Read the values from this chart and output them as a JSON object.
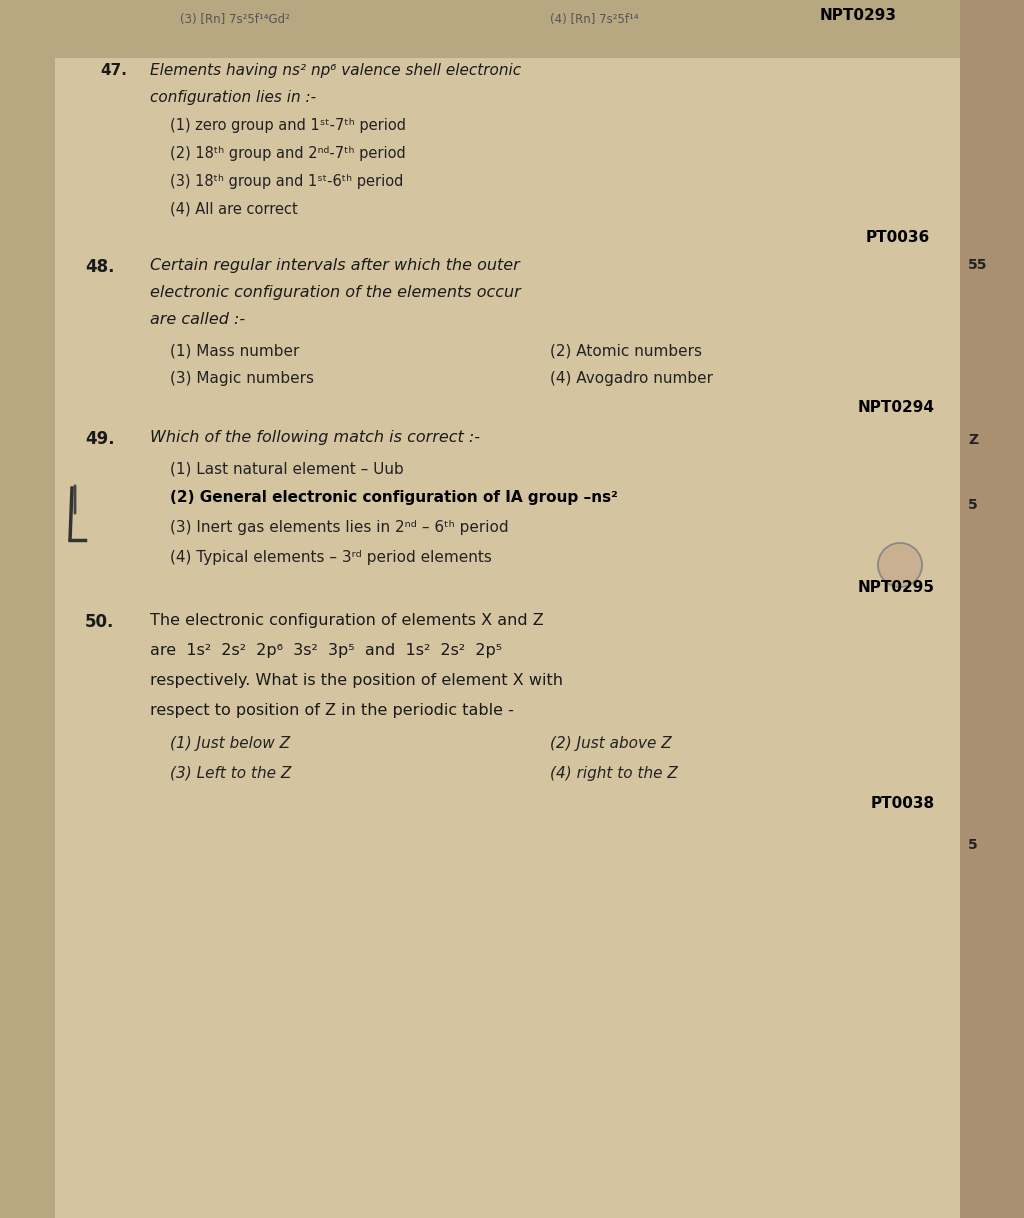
{
  "bg_color": "#c8b89a",
  "page_bg": "#d4c4a0",
  "text_color": "#1a1a1a",
  "bold_color": "#000000",
  "highlight_color": "#2a2a2a",
  "title_top": "NPT0293",
  "q47_text": "Elements having ns² np⁶ valence shell electronic\nconfiguration lies in :-",
  "q47_num": "47.",
  "q47_options": [
    "(1) zero group and 1ˢᵗ-7ᵗʰ period",
    "(2) 18ᵗʰ group and 2ⁿᵈ-7ᵗʰ period",
    "(3) 18ᵗʰ group and 1ˢᵗ-6ᵗʰ period",
    "(4) All are correct"
  ],
  "pt0036": "PT0036",
  "q48_num": "48.",
  "q48_text": "Certain regular intervals after which the outer\nelectronic configuration of the elements occur\nare called :-",
  "q48_options_left": [
    "(1) Mass number",
    "(3) Magic numbers"
  ],
  "q48_options_right": [
    "(2) Atomic numbers",
    "(4) Avogadro number"
  ],
  "npt0294": "NPT0294",
  "q49_num": "49.",
  "q49_text": "Which of the following match is correct :-",
  "q49_options": [
    "(1) Last natural element – Uub",
    "(2) General electronic configuration of IA group –ns²",
    "(3) Inert gas elements lies in 2ⁿᵈ – 6ᵗʰ period",
    "(4) Typical elements – 3ʳᵈ period elements"
  ],
  "npt0295": "NPT0295",
  "q50_num": "50.",
  "q50_text": "The electronic configuration of elements X and Z\nare  1s²  2s²  2p⁶  3s²  3p⁵  and  1s²  2s²  2p⁵\nrespectively. What is the position of element X with\nrespect to position of Z in the periodic table -",
  "q50_options_left": [
    "(1) Just below Z",
    "(3) Left to the Z"
  ],
  "q50_options_right": [
    "(2) Just above Z",
    "(4) right to the Z"
  ],
  "pt0038": "PT0038",
  "side_text_55": "55",
  "side_text_z": "Z",
  "side_text_5": "5",
  "side_text_5b": "5"
}
